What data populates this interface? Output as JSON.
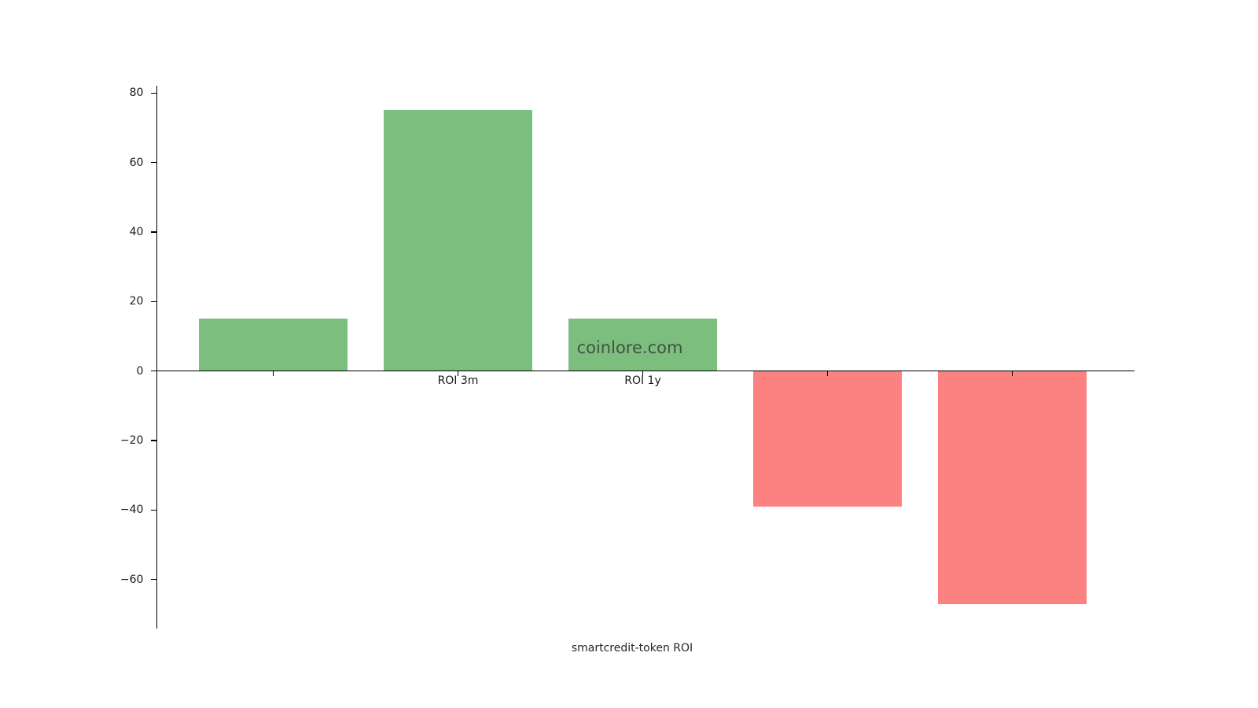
{
  "page": {
    "watermark": "coinlore.com",
    "title": "smartcredit-token ROI"
  },
  "colors": {
    "positive_bar": "#7cbe7e",
    "negative_bar": "#fc8181",
    "axis": "#000000",
    "tick_text": "#1a1a1a",
    "title_text": "#262626"
  },
  "chart_data": {
    "type": "bar",
    "title": "smartcredit-token ROI",
    "xlabel": "",
    "ylabel": "",
    "categories": [
      "",
      "ROI 3m",
      "ROI 1y",
      "",
      ""
    ],
    "values": [
      15,
      75,
      15,
      -39,
      -67
    ],
    "bar_colors": [
      "#7cbe7e",
      "#7cbe7e",
      "#7cbe7e",
      "#fc8181",
      "#fc8181"
    ],
    "y_ticks": [
      80,
      60,
      40,
      20,
      0,
      -20,
      -40,
      -60
    ],
    "ylim": [
      -74.1,
      82.1
    ],
    "grid": false,
    "legend": null,
    "annotations": [
      "coinlore.com"
    ]
  }
}
